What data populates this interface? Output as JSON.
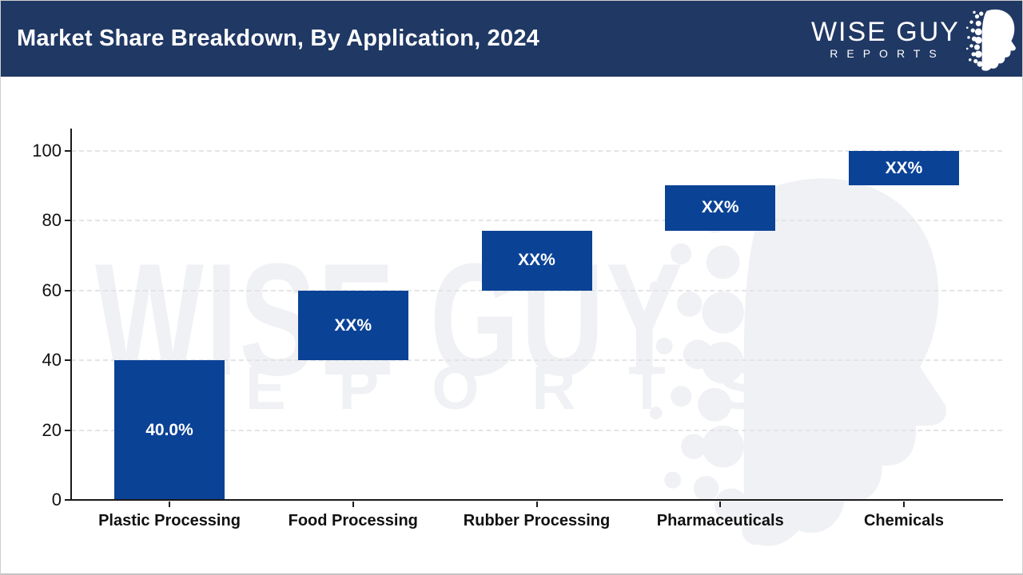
{
  "header": {
    "title": "Market Share Breakdown, By Application, 2024",
    "logo": {
      "line1": "WISE GUY",
      "line2": "REPORTS"
    }
  },
  "watermark": {
    "line1": "WISE GUY",
    "line2": "REPORTS"
  },
  "colors": {
    "header_bg": "#203864",
    "bar": "#0a4296",
    "bar_label": "#ffffff",
    "axis": "#1a1a1a",
    "grid": "#e4e4e6",
    "watermark": "#f0f1f4"
  },
  "chart_data": {
    "type": "bar",
    "subtype": "waterfall",
    "title": "Market Share Breakdown, By Application, 2024",
    "categories": [
      "Plastic Processing",
      "Food Processing",
      "Rubber Processing",
      "Pharmaceuticals",
      "Chemicals"
    ],
    "values": [
      40,
      20,
      17,
      13,
      10
    ],
    "segments": [
      [
        0,
        40
      ],
      [
        40,
        60
      ],
      [
        60,
        77
      ],
      [
        77,
        90
      ],
      [
        90,
        100
      ]
    ],
    "bar_labels": [
      "40.0%",
      "XX%",
      "XX%",
      "XX%",
      "XX%"
    ],
    "yticks": [
      0,
      20,
      40,
      60,
      80,
      100
    ],
    "ylim": [
      0,
      105
    ],
    "xlabel": "",
    "ylabel": "",
    "legend": "none",
    "grid": "horizontal-dashed"
  }
}
